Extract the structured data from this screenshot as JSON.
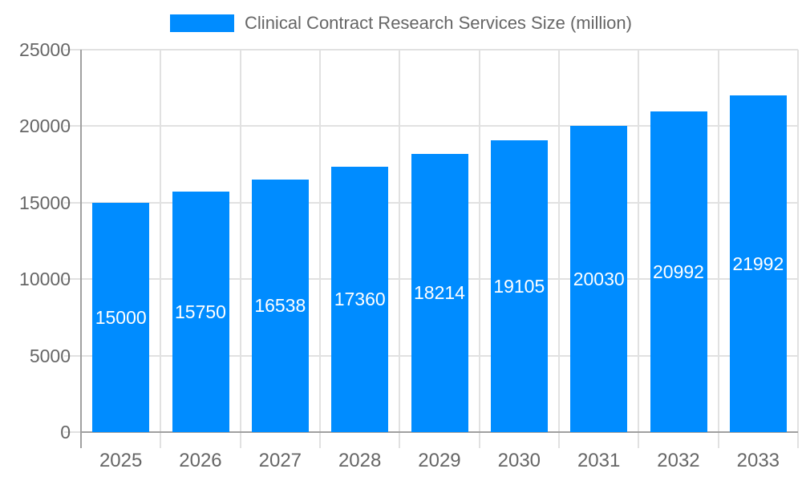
{
  "chart_data": {
    "type": "bar",
    "title": "Clinical Contract Research Services Size (million)",
    "categories": [
      "2025",
      "2026",
      "2027",
      "2028",
      "2029",
      "2030",
      "2031",
      "2032",
      "2033"
    ],
    "values": [
      15000,
      15750,
      16538,
      17360,
      18214,
      19105,
      20030,
      20992,
      21992
    ],
    "xlabel": "",
    "ylabel": "",
    "ylim": [
      0,
      25000
    ],
    "yticks": [
      0,
      5000,
      10000,
      15000,
      20000,
      25000
    ],
    "grid": true,
    "legend_position": "top",
    "bar_labels_inside": true
  },
  "colors": {
    "bar": "#008CFF",
    "grid": "#e1e1e1",
    "axis": "#a0a0a0",
    "text": "#666666",
    "bar_label": "#ffffff",
    "background": "#ffffff"
  }
}
